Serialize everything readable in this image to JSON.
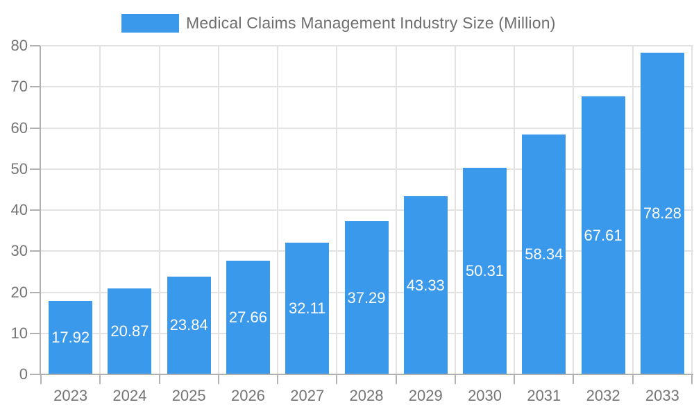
{
  "chart_data": {
    "type": "bar",
    "title": "Medical Claims Management Industry Size (Million)",
    "legend_position": "top",
    "categories": [
      "2023",
      "2024",
      "2025",
      "2026",
      "2027",
      "2028",
      "2029",
      "2030",
      "2031",
      "2032",
      "2033"
    ],
    "values": [
      17.92,
      20.87,
      23.84,
      27.66,
      32.11,
      37.29,
      43.33,
      50.31,
      58.34,
      67.61,
      78.28
    ],
    "value_labels": [
      "17.92",
      "20.87",
      "23.84",
      "27.66",
      "32.11",
      "37.29",
      "43.33",
      "50.31",
      "58.34",
      "67.61",
      "78.28"
    ],
    "xlabel": "",
    "ylabel": "",
    "ylim": [
      0,
      80
    ],
    "yticks": [
      0,
      10,
      20,
      30,
      40,
      50,
      60,
      70,
      80
    ],
    "grid": "horizontal and vertical gridlines on",
    "colors": {
      "bar": "#3B99EC",
      "grid": "#e2e2e2",
      "axis": "#b0b0b0",
      "x_tick": "#b3b3b3",
      "tick_label": "#757575",
      "title": "#6e6e6e",
      "value_label": "#ffffff",
      "background": "#ffffff"
    }
  }
}
